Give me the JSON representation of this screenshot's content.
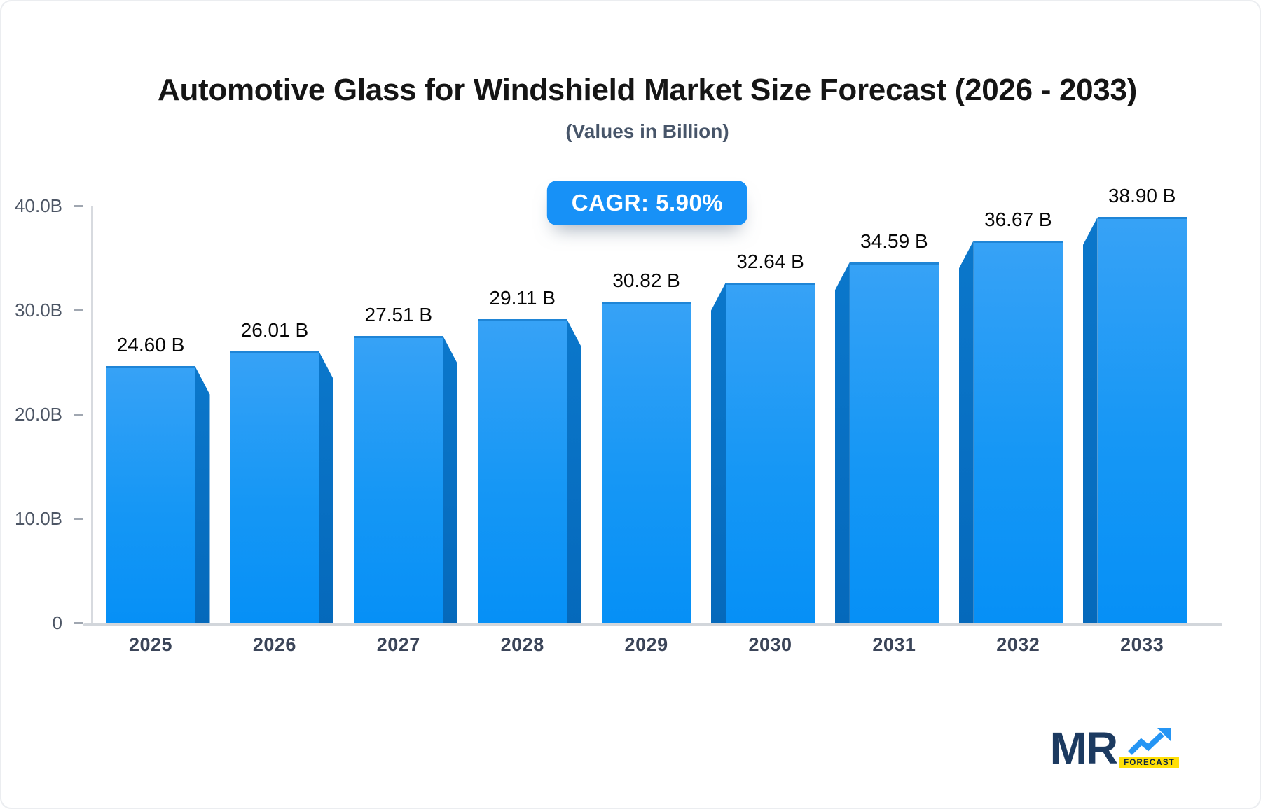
{
  "header": {
    "title": "Automotive Glass for Windshield Market Size Forecast (2026 - 2033)",
    "subtitle": "(Values in Billion)"
  },
  "badge": {
    "label": "CAGR: 5.90%"
  },
  "chart_data": {
    "type": "bar",
    "title": "Automotive Glass for Windshield Market Size Forecast (2026 - 2033)",
    "subtitle": "(Values in Billion)",
    "cagr": "5.90%",
    "categories": [
      "2025",
      "2026",
      "2027",
      "2028",
      "2029",
      "2030",
      "2031",
      "2032",
      "2033"
    ],
    "values": [
      24.6,
      26.01,
      27.51,
      29.11,
      30.82,
      32.64,
      34.59,
      36.67,
      38.9
    ],
    "value_labels": [
      "24.60 B",
      "26.01 B",
      "27.51 B",
      "29.11 B",
      "30.82 B",
      "32.64 B",
      "34.59 B",
      "36.67 B",
      "38.90 B"
    ],
    "y_ticks": [
      {
        "value": 0,
        "label": "0"
      },
      {
        "value": 10,
        "label": "10.0B"
      },
      {
        "value": 20,
        "label": "20.0B"
      },
      {
        "value": 30,
        "label": "30.0B"
      },
      {
        "value": 40,
        "label": "40.0B"
      }
    ],
    "ylim": [
      0,
      40
    ],
    "xlabel": "",
    "ylabel": "",
    "grid": false,
    "legend": false
  },
  "colors": {
    "bar_top": "#37a2f6",
    "bar_bottom": "#0690f6",
    "bar_side": "#0a74c7",
    "badge_bg": "#1791f7",
    "axis": "#d2d6db",
    "logo_navy": "#1c3a60",
    "logo_yellow": "#ffdf07",
    "logo_arrow": "#2595f4"
  },
  "logo": {
    "mr": "MR",
    "forecast": "FORECAST"
  }
}
